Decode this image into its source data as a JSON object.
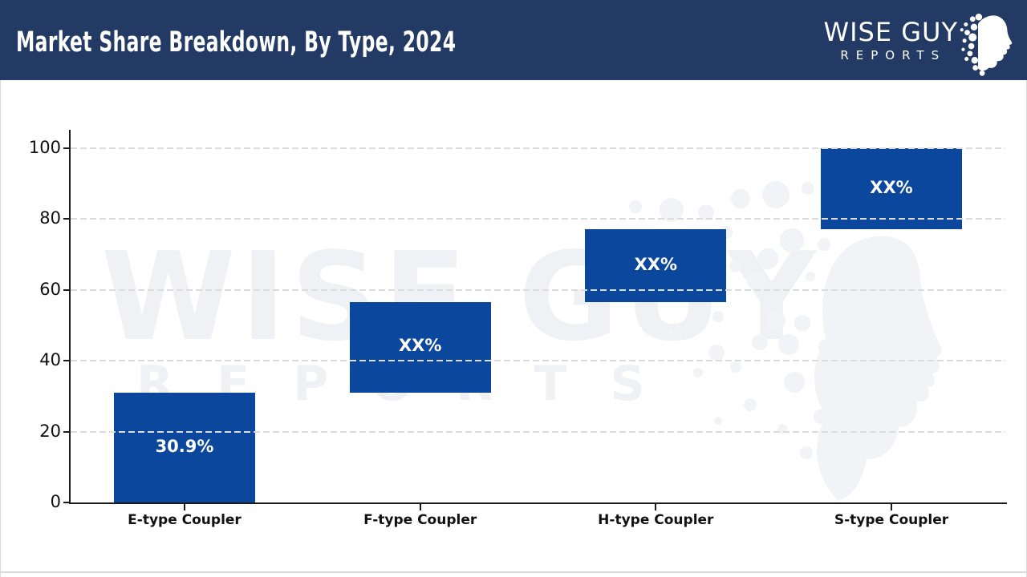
{
  "header": {
    "title": "Market Share Breakdown, By Type, 2024",
    "logo": {
      "line1": "WISE GUY",
      "line2": "REPORTS"
    }
  },
  "watermark": {
    "line1": "WISE GUY",
    "line2": "REPORTS"
  },
  "colors": {
    "header_bg": "#223A64",
    "bar": "#0B479D",
    "grid": "#DCDCDC",
    "axis": "#1A1A1A",
    "watermark": "#F0F1F4",
    "watermark_shape": "#F2F3F6",
    "border": "#D9D9D9",
    "bar_label_text": "#FFFFFF"
  },
  "chart_data": {
    "type": "bar",
    "subtype": "waterfall (floating stacked segments)",
    "title": "Market Share Breakdown, By Type, 2024",
    "categories": [
      "E-type Coupler",
      "F-type Coupler",
      "H-type Coupler",
      "S-type Coupler"
    ],
    "segments": [
      {
        "category": "E-type Coupler",
        "start": 0,
        "end": 30.9,
        "label": "30.9%"
      },
      {
        "category": "F-type Coupler",
        "start": 30.9,
        "end": 56.6,
        "label": "XX%"
      },
      {
        "category": "H-type Coupler",
        "start": 56.6,
        "end": 77.0,
        "label": "XX%"
      },
      {
        "category": "S-type Coupler",
        "start": 77.0,
        "end": 100,
        "label": "XX%"
      }
    ],
    "value_labels": [
      "30.9%",
      "XX%",
      "XX%",
      "XX%"
    ],
    "y_ticks": [
      0,
      20,
      40,
      60,
      80,
      100
    ],
    "ylim": [
      0,
      105
    ],
    "xlabel": "",
    "ylabel": "",
    "grid": {
      "axis": "y",
      "style": "dashed",
      "drawn_above_bars": true
    },
    "legend": "none",
    "bar_color": "#0B479D"
  }
}
